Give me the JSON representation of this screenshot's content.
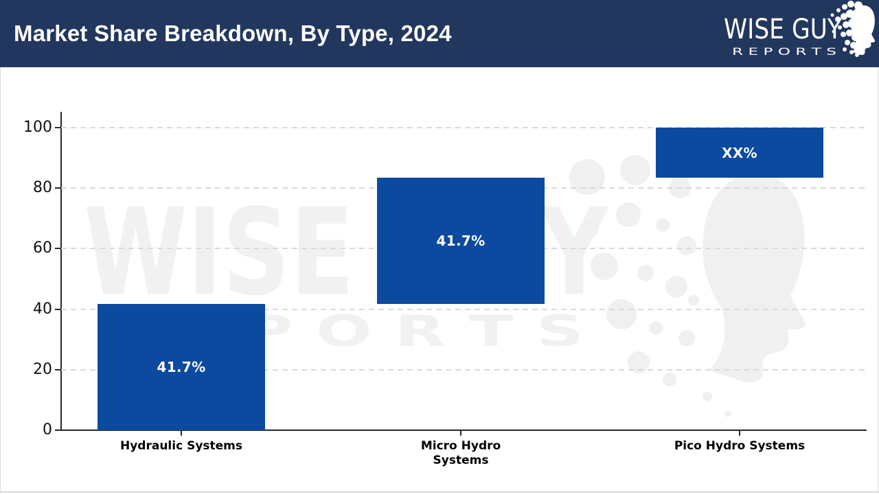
{
  "header": {
    "title": "Market Share Breakdown, By Type, 2024",
    "bg_color": "#22375e",
    "logo": {
      "line1": "WISE GUY",
      "line2": "R E P O R T S"
    }
  },
  "watermark": {
    "line1": "WISE GUY",
    "line2": "R E P O R T S",
    "color": "#f1f1f1"
  },
  "chart_data": {
    "type": "bar",
    "subtype": "waterfall-cumulative",
    "title": "Market Share Breakdown, By Type, 2024",
    "categories": [
      "Hydraulic Systems",
      "Micro Hydro\nSystems",
      "Pico Hydro Systems"
    ],
    "bars": [
      {
        "category": "Hydraulic Systems",
        "start": 0,
        "end": 41.7,
        "value": 41.7,
        "label": "41.7%"
      },
      {
        "category": "Micro Hydro\nSystems",
        "start": 41.7,
        "end": 83.4,
        "value": 41.7,
        "label": "41.7%"
      },
      {
        "category": "Pico Hydro Systems",
        "start": 83.4,
        "end": 100,
        "value": 16.6,
        "label": "XX%"
      }
    ],
    "yticks": [
      0,
      20,
      40,
      60,
      80,
      100
    ],
    "ylim": [
      0,
      105
    ],
    "grid": true,
    "gridline_style": "dashed",
    "legend": "none",
    "bar_color": "#0b4a9f",
    "bar_label_color": "#ffffff",
    "gridline_color": "#d9d9d9",
    "axis_color": "#262626",
    "tick_label_color": "#111111"
  }
}
